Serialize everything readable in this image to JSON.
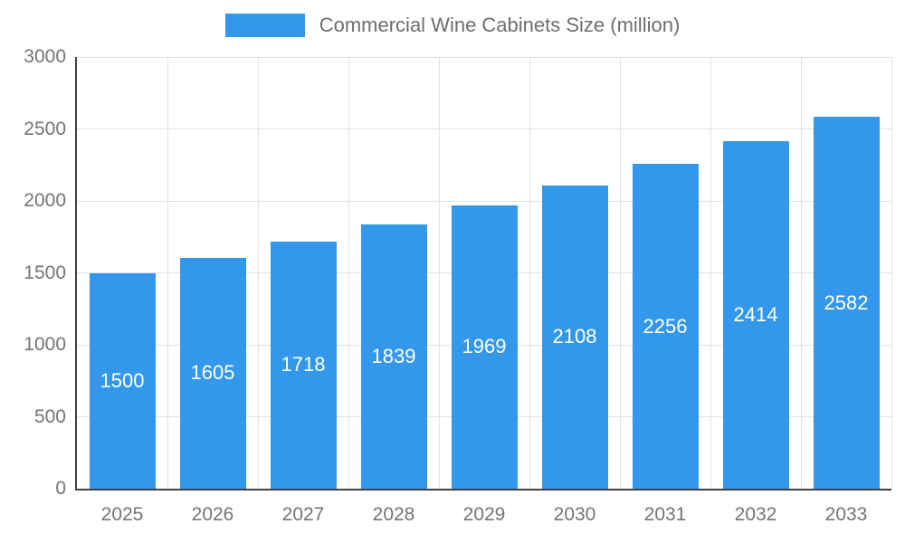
{
  "chart_data": {
    "type": "bar",
    "title": "Commercial Wine Cabinets Size (million)",
    "categories": [
      "2025",
      "2026",
      "2027",
      "2028",
      "2029",
      "2030",
      "2031",
      "2032",
      "2033"
    ],
    "values": [
      1500,
      1605,
      1718,
      1839,
      1969,
      2108,
      2256,
      2414,
      2582
    ],
    "xlabel": "",
    "ylabel": "",
    "ylim": [
      0,
      3000
    ],
    "ytick_step": 500,
    "ytick_labels": [
      "0",
      "500",
      "1000",
      "1500",
      "2000",
      "2500",
      "3000"
    ],
    "grid": true,
    "legend_position": "top",
    "bar_color": "#3398EC",
    "value_label_color": "#ffffff",
    "axis_text_color": "#757575",
    "axis_line_color": "#424242",
    "gridline_color": "#e2e2e2"
  }
}
